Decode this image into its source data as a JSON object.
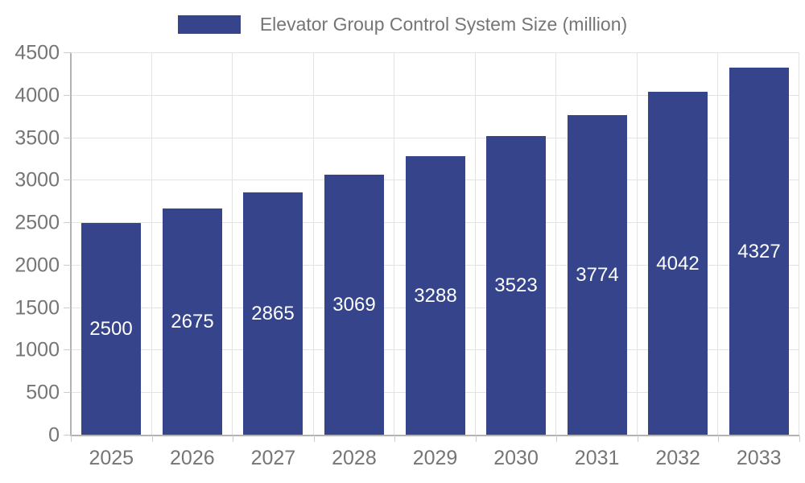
{
  "legend": {
    "label": "Elevator Group Control System Size (million)"
  },
  "chart_data": {
    "type": "bar",
    "title": "Elevator Group Control System Size (million)",
    "categories": [
      "2025",
      "2026",
      "2027",
      "2028",
      "2029",
      "2030",
      "2031",
      "2032",
      "2033"
    ],
    "values": [
      2500,
      2675,
      2865,
      3069,
      3288,
      3523,
      3774,
      4042,
      4327
    ],
    "xlabel": "",
    "ylabel": "",
    "ylim": [
      0,
      4500
    ],
    "ytick_step": 500,
    "grid": true,
    "legend_position": "top-center",
    "bar_color": "#36458b",
    "bar_label_color": "#ffffff",
    "bar_label_position": "inside-center",
    "axis_text_color": "#757575",
    "grid_color": "#e3e3e3",
    "axis_line_color": "#b3b3b3",
    "background_color": "#ffffff"
  }
}
